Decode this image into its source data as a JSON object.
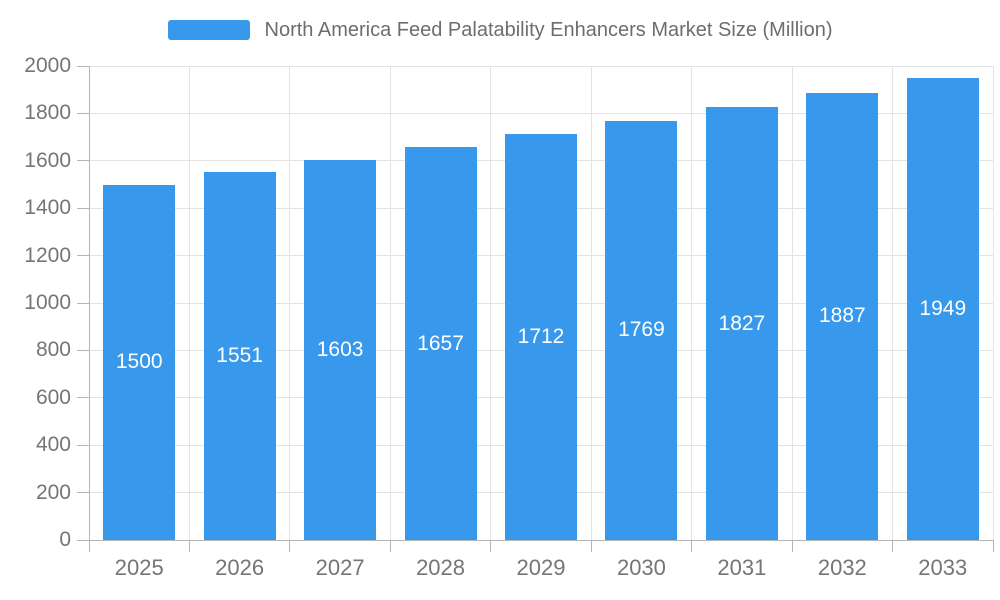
{
  "chart_data": {
    "type": "bar",
    "title": "North America Feed Palatability Enhancers Market Size (Million)",
    "categories": [
      "2025",
      "2026",
      "2027",
      "2028",
      "2029",
      "2030",
      "2031",
      "2032",
      "2033"
    ],
    "values": [
      1500,
      1551,
      1603,
      1657,
      1712,
      1769,
      1827,
      1887,
      1949
    ],
    "xlabel": "",
    "ylabel": "",
    "ylim": [
      0,
      2000
    ],
    "ytick_step": 200,
    "ytick_labels": [
      "0",
      "200",
      "400",
      "600",
      "800",
      "1000",
      "1200",
      "1400",
      "1600",
      "1800",
      "2000"
    ],
    "bar_color": "#3898ec",
    "value_label_color": "#ffffff",
    "value_labels_visible": true,
    "grid": true,
    "legend_position": "top"
  }
}
